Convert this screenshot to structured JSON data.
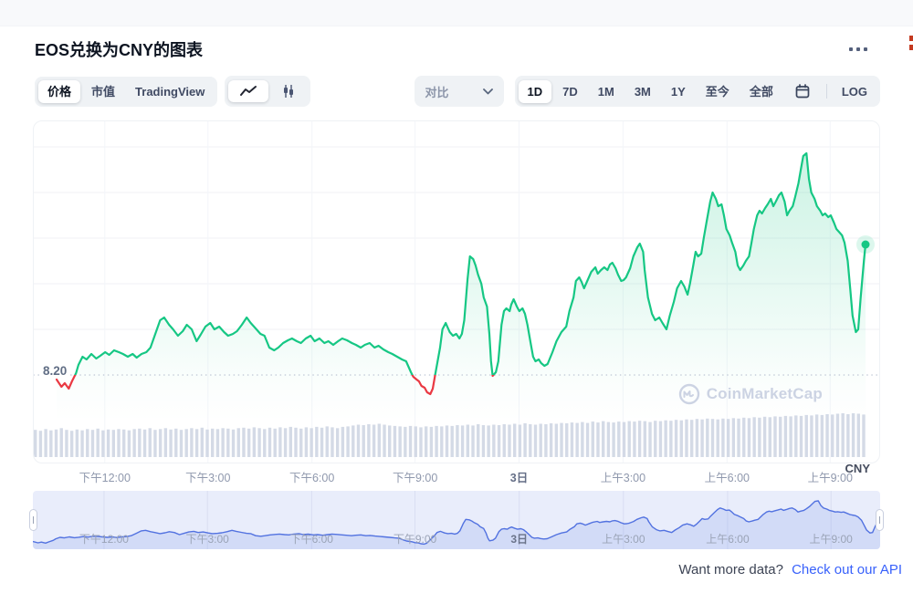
{
  "page": {
    "title": "EOS兑换为CNY的图表"
  },
  "toolbar": {
    "view_tabs": [
      {
        "name": "price",
        "label": "价格",
        "selected": true
      },
      {
        "name": "market-cap",
        "label": "市值",
        "selected": false
      },
      {
        "name": "tradingview",
        "label": "TradingView",
        "selected": false
      }
    ],
    "chart_types": [
      {
        "name": "line-chart",
        "selected": true
      },
      {
        "name": "candlestick",
        "selected": false
      }
    ],
    "compare_label": "对比",
    "ranges": [
      {
        "name": "1d",
        "label": "1D",
        "selected": true
      },
      {
        "name": "7d",
        "label": "7D",
        "selected": false
      },
      {
        "name": "1m",
        "label": "1M",
        "selected": false
      },
      {
        "name": "3m",
        "label": "3M",
        "selected": false
      },
      {
        "name": "1y",
        "label": "1Y",
        "selected": false
      },
      {
        "name": "ytd",
        "label": "至今",
        "selected": false
      },
      {
        "name": "all",
        "label": "全部",
        "selected": false
      }
    ],
    "log_label": "LOG"
  },
  "watermark": {
    "text": "CoinMarketCap"
  },
  "footer": {
    "prompt": "Want more data?",
    "link": "Check out our API"
  },
  "chart_data": {
    "type": "line",
    "title": "EOS兑换为CNY的图表",
    "pair": "EOS/CNY",
    "unit_label": "CNY",
    "timeframe": "1D",
    "baseline": {
      "label": "8.20",
      "value": 8.2
    },
    "y_gridlines": [
      8.3,
      8.4,
      8.5,
      8.6,
      8.7
    ],
    "ylim": [
      8.1,
      8.74
    ],
    "x_ticks": [
      {
        "label": "下午12:00",
        "f": 0.084,
        "strong": false
      },
      {
        "label": "下午3:00",
        "f": 0.206,
        "strong": false
      },
      {
        "label": "下午6:00",
        "f": 0.329,
        "strong": false
      },
      {
        "label": "下午9:00",
        "f": 0.451,
        "strong": false
      },
      {
        "label": "3日",
        "f": 0.574,
        "strong": true
      },
      {
        "label": "上午3:00",
        "f": 0.697,
        "strong": false
      },
      {
        "label": "上午6:00",
        "f": 0.82,
        "strong": false
      },
      {
        "label": "上午9:00",
        "f": 0.942,
        "strong": false
      }
    ],
    "series": [
      {
        "name": "EOS price (CNY)",
        "points": [
          [
            0.0,
            8.19
          ],
          [
            0.006,
            8.174
          ],
          [
            0.01,
            8.182
          ],
          [
            0.015,
            8.17
          ],
          [
            0.019,
            8.186
          ],
          [
            0.024,
            8.204
          ],
          [
            0.027,
            8.222
          ],
          [
            0.032,
            8.24
          ],
          [
            0.037,
            8.234
          ],
          [
            0.043,
            8.246
          ],
          [
            0.049,
            8.236
          ],
          [
            0.054,
            8.242
          ],
          [
            0.06,
            8.25
          ],
          [
            0.065,
            8.244
          ],
          [
            0.071,
            8.254
          ],
          [
            0.077,
            8.25
          ],
          [
            0.082,
            8.246
          ],
          [
            0.088,
            8.24
          ],
          [
            0.094,
            8.246
          ],
          [
            0.099,
            8.238
          ],
          [
            0.105,
            8.246
          ],
          [
            0.111,
            8.25
          ],
          [
            0.116,
            8.26
          ],
          [
            0.122,
            8.29
          ],
          [
            0.128,
            8.32
          ],
          [
            0.133,
            8.326
          ],
          [
            0.139,
            8.31
          ],
          [
            0.144,
            8.3
          ],
          [
            0.15,
            8.286
          ],
          [
            0.156,
            8.296
          ],
          [
            0.161,
            8.31
          ],
          [
            0.167,
            8.3
          ],
          [
            0.173,
            8.274
          ],
          [
            0.178,
            8.288
          ],
          [
            0.184,
            8.306
          ],
          [
            0.19,
            8.314
          ],
          [
            0.195,
            8.3
          ],
          [
            0.201,
            8.306
          ],
          [
            0.207,
            8.294
          ],
          [
            0.212,
            8.286
          ],
          [
            0.218,
            8.29
          ],
          [
            0.223,
            8.296
          ],
          [
            0.229,
            8.31
          ],
          [
            0.235,
            8.326
          ],
          [
            0.24,
            8.314
          ],
          [
            0.246,
            8.302
          ],
          [
            0.252,
            8.29
          ],
          [
            0.257,
            8.286
          ],
          [
            0.263,
            8.26
          ],
          [
            0.269,
            8.254
          ],
          [
            0.274,
            8.26
          ],
          [
            0.28,
            8.27
          ],
          [
            0.286,
            8.276
          ],
          [
            0.291,
            8.28
          ],
          [
            0.297,
            8.274
          ],
          [
            0.302,
            8.27
          ],
          [
            0.308,
            8.28
          ],
          [
            0.314,
            8.286
          ],
          [
            0.319,
            8.274
          ],
          [
            0.325,
            8.28
          ],
          [
            0.331,
            8.27
          ],
          [
            0.336,
            8.274
          ],
          [
            0.342,
            8.266
          ],
          [
            0.348,
            8.274
          ],
          [
            0.353,
            8.28
          ],
          [
            0.359,
            8.276
          ],
          [
            0.365,
            8.27
          ],
          [
            0.37,
            8.266
          ],
          [
            0.376,
            8.26
          ],
          [
            0.381,
            8.266
          ],
          [
            0.387,
            8.27
          ],
          [
            0.393,
            8.26
          ],
          [
            0.398,
            8.264
          ],
          [
            0.404,
            8.256
          ],
          [
            0.41,
            8.25
          ],
          [
            0.415,
            8.246
          ],
          [
            0.421,
            8.24
          ],
          [
            0.427,
            8.234
          ],
          [
            0.432,
            8.23
          ],
          [
            0.438,
            8.206
          ],
          [
            0.441,
            8.196
          ],
          [
            0.445,
            8.19
          ],
          [
            0.448,
            8.186
          ],
          [
            0.451,
            8.176
          ],
          [
            0.455,
            8.172
          ],
          [
            0.458,
            8.162
          ],
          [
            0.462,
            8.158
          ],
          [
            0.465,
            8.17
          ],
          [
            0.468,
            8.2
          ],
          [
            0.471,
            8.23
          ],
          [
            0.474,
            8.26
          ],
          [
            0.477,
            8.3
          ],
          [
            0.481,
            8.314
          ],
          [
            0.483,
            8.306
          ],
          [
            0.486,
            8.294
          ],
          [
            0.49,
            8.286
          ],
          [
            0.494,
            8.29
          ],
          [
            0.498,
            8.28
          ],
          [
            0.501,
            8.29
          ],
          [
            0.504,
            8.32
          ],
          [
            0.508,
            8.41
          ],
          [
            0.511,
            8.46
          ],
          [
            0.515,
            8.454
          ],
          [
            0.518,
            8.44
          ],
          [
            0.521,
            8.42
          ],
          [
            0.525,
            8.4
          ],
          [
            0.528,
            8.37
          ],
          [
            0.532,
            8.35
          ],
          [
            0.535,
            8.29
          ],
          [
            0.537,
            8.23
          ],
          [
            0.539,
            8.198
          ],
          [
            0.543,
            8.206
          ],
          [
            0.546,
            8.23
          ],
          [
            0.55,
            8.31
          ],
          [
            0.553,
            8.34
          ],
          [
            0.556,
            8.346
          ],
          [
            0.56,
            8.34
          ],
          [
            0.562,
            8.354
          ],
          [
            0.565,
            8.366
          ],
          [
            0.569,
            8.35
          ],
          [
            0.572,
            8.34
          ],
          [
            0.576,
            8.346
          ],
          [
            0.579,
            8.334
          ],
          [
            0.582,
            8.31
          ],
          [
            0.586,
            8.27
          ],
          [
            0.589,
            8.24
          ],
          [
            0.592,
            8.23
          ],
          [
            0.596,
            8.234
          ],
          [
            0.599,
            8.226
          ],
          [
            0.603,
            8.22
          ],
          [
            0.607,
            8.224
          ],
          [
            0.613,
            8.25
          ],
          [
            0.618,
            8.274
          ],
          [
            0.624,
            8.294
          ],
          [
            0.63,
            8.306
          ],
          [
            0.634,
            8.34
          ],
          [
            0.639,
            8.37
          ],
          [
            0.642,
            8.406
          ],
          [
            0.646,
            8.414
          ],
          [
            0.649,
            8.404
          ],
          [
            0.652,
            8.39
          ],
          [
            0.657,
            8.41
          ],
          [
            0.661,
            8.426
          ],
          [
            0.666,
            8.436
          ],
          [
            0.669,
            8.422
          ],
          [
            0.673,
            8.43
          ],
          [
            0.677,
            8.436
          ],
          [
            0.681,
            8.43
          ],
          [
            0.684,
            8.442
          ],
          [
            0.687,
            8.446
          ],
          [
            0.691,
            8.434
          ],
          [
            0.694,
            8.42
          ],
          [
            0.698,
            8.406
          ],
          [
            0.701,
            8.408
          ],
          [
            0.704,
            8.414
          ],
          [
            0.709,
            8.434
          ],
          [
            0.713,
            8.46
          ],
          [
            0.718,
            8.48
          ],
          [
            0.721,
            8.488
          ],
          [
            0.725,
            8.47
          ],
          [
            0.727,
            8.43
          ],
          [
            0.731,
            8.37
          ],
          [
            0.736,
            8.334
          ],
          [
            0.74,
            8.32
          ],
          [
            0.745,
            8.326
          ],
          [
            0.749,
            8.314
          ],
          [
            0.754,
            8.3
          ],
          [
            0.758,
            8.33
          ],
          [
            0.763,
            8.36
          ],
          [
            0.767,
            8.39
          ],
          [
            0.772,
            8.406
          ],
          [
            0.776,
            8.394
          ],
          [
            0.78,
            8.376
          ],
          [
            0.783,
            8.4
          ],
          [
            0.787,
            8.44
          ],
          [
            0.79,
            8.47
          ],
          [
            0.793,
            8.46
          ],
          [
            0.797,
            8.466
          ],
          [
            0.8,
            8.5
          ],
          [
            0.804,
            8.54
          ],
          [
            0.808,
            8.58
          ],
          [
            0.811,
            8.6
          ],
          [
            0.815,
            8.586
          ],
          [
            0.818,
            8.57
          ],
          [
            0.822,
            8.574
          ],
          [
            0.825,
            8.55
          ],
          [
            0.828,
            8.52
          ],
          [
            0.832,
            8.506
          ],
          [
            0.835,
            8.49
          ],
          [
            0.839,
            8.47
          ],
          [
            0.842,
            8.44
          ],
          [
            0.845,
            8.43
          ],
          [
            0.849,
            8.44
          ],
          [
            0.852,
            8.45
          ],
          [
            0.856,
            8.46
          ],
          [
            0.859,
            8.49
          ],
          [
            0.862,
            8.52
          ],
          [
            0.866,
            8.55
          ],
          [
            0.869,
            8.56
          ],
          [
            0.872,
            8.554
          ],
          [
            0.876,
            8.566
          ],
          [
            0.879,
            8.574
          ],
          [
            0.883,
            8.586
          ],
          [
            0.886,
            8.57
          ],
          [
            0.889,
            8.58
          ],
          [
            0.893,
            8.594
          ],
          [
            0.896,
            8.6
          ],
          [
            0.9,
            8.58
          ],
          [
            0.903,
            8.55
          ],
          [
            0.906,
            8.56
          ],
          [
            0.91,
            8.57
          ],
          [
            0.913,
            8.59
          ],
          [
            0.917,
            8.62
          ],
          [
            0.92,
            8.65
          ],
          [
            0.923,
            8.68
          ],
          [
            0.927,
            8.686
          ],
          [
            0.93,
            8.63
          ],
          [
            0.933,
            8.6
          ],
          [
            0.937,
            8.586
          ],
          [
            0.94,
            8.57
          ],
          [
            0.944,
            8.56
          ],
          [
            0.947,
            8.55
          ],
          [
            0.95,
            8.554
          ],
          [
            0.954,
            8.546
          ],
          [
            0.957,
            8.55
          ],
          [
            0.961,
            8.534
          ],
          [
            0.964,
            8.52
          ],
          [
            0.967,
            8.514
          ],
          [
            0.971,
            8.506
          ],
          [
            0.974,
            8.49
          ],
          [
            0.978,
            8.45
          ],
          [
            0.981,
            8.39
          ],
          [
            0.984,
            8.33
          ],
          [
            0.988,
            8.294
          ],
          [
            0.991,
            8.3
          ],
          [
            0.994,
            8.37
          ],
          [
            0.998,
            8.45
          ],
          [
            1.0,
            8.486
          ]
        ]
      }
    ],
    "volume_norm": [
      0.62,
      0.6,
      0.64,
      0.61,
      0.63,
      0.66,
      0.62,
      0.6,
      0.63,
      0.61,
      0.64,
      0.62,
      0.65,
      0.61,
      0.63,
      0.62,
      0.64,
      0.63,
      0.61,
      0.64,
      0.65,
      0.63,
      0.66,
      0.62,
      0.64,
      0.66,
      0.63,
      0.65,
      0.62,
      0.64,
      0.66,
      0.64,
      0.67,
      0.63,
      0.65,
      0.64,
      0.66,
      0.65,
      0.63,
      0.66,
      0.67,
      0.65,
      0.68,
      0.66,
      0.64,
      0.67,
      0.65,
      0.68,
      0.66,
      0.69,
      0.67,
      0.65,
      0.68,
      0.66,
      0.69,
      0.67,
      0.7,
      0.68,
      0.66,
      0.69,
      0.7,
      0.72,
      0.74,
      0.73,
      0.75,
      0.74,
      0.76,
      0.74,
      0.72,
      0.71,
      0.7,
      0.69,
      0.71,
      0.7,
      0.68,
      0.7,
      0.69,
      0.71,
      0.7,
      0.72,
      0.71,
      0.73,
      0.72,
      0.74,
      0.72,
      0.75,
      0.73,
      0.72,
      0.74,
      0.73,
      0.75,
      0.74,
      0.76,
      0.74,
      0.77,
      0.75,
      0.74,
      0.76,
      0.75,
      0.77,
      0.76,
      0.78,
      0.77,
      0.79,
      0.78,
      0.8,
      0.78,
      0.81,
      0.79,
      0.82,
      0.8,
      0.79,
      0.81,
      0.8,
      0.82,
      0.81,
      0.83,
      0.82,
      0.8,
      0.83,
      0.82,
      0.84,
      0.83,
      0.85,
      0.84,
      0.86,
      0.85,
      0.87,
      0.86,
      0.88,
      0.87,
      0.86,
      0.88,
      0.87,
      0.89,
      0.88,
      0.9,
      0.89,
      0.91,
      0.9,
      0.92,
      0.91,
      0.93,
      0.92,
      0.94,
      0.93,
      0.95,
      0.94,
      0.96,
      0.95,
      0.97,
      0.96,
      0.98,
      0.97,
      0.99,
      1.0,
      0.98,
      1.0,
      0.99,
      0.97
    ],
    "colors": {
      "up": "#16c784",
      "down": "#ea3943",
      "area_top": "rgba(22,199,132,0.22)",
      "grid": "#f0f2f6",
      "baseline_dots": "#c3cbd8",
      "volume_bar": "#ccd3e2",
      "mini_bg": "#e9edfb",
      "mini_grid": "#d9def2",
      "mini_line": "#5272e0",
      "mini_fill": "rgba(95,125,230,0.16)",
      "link_blue": "#3861fb"
    },
    "legend": "none",
    "grid": true
  }
}
